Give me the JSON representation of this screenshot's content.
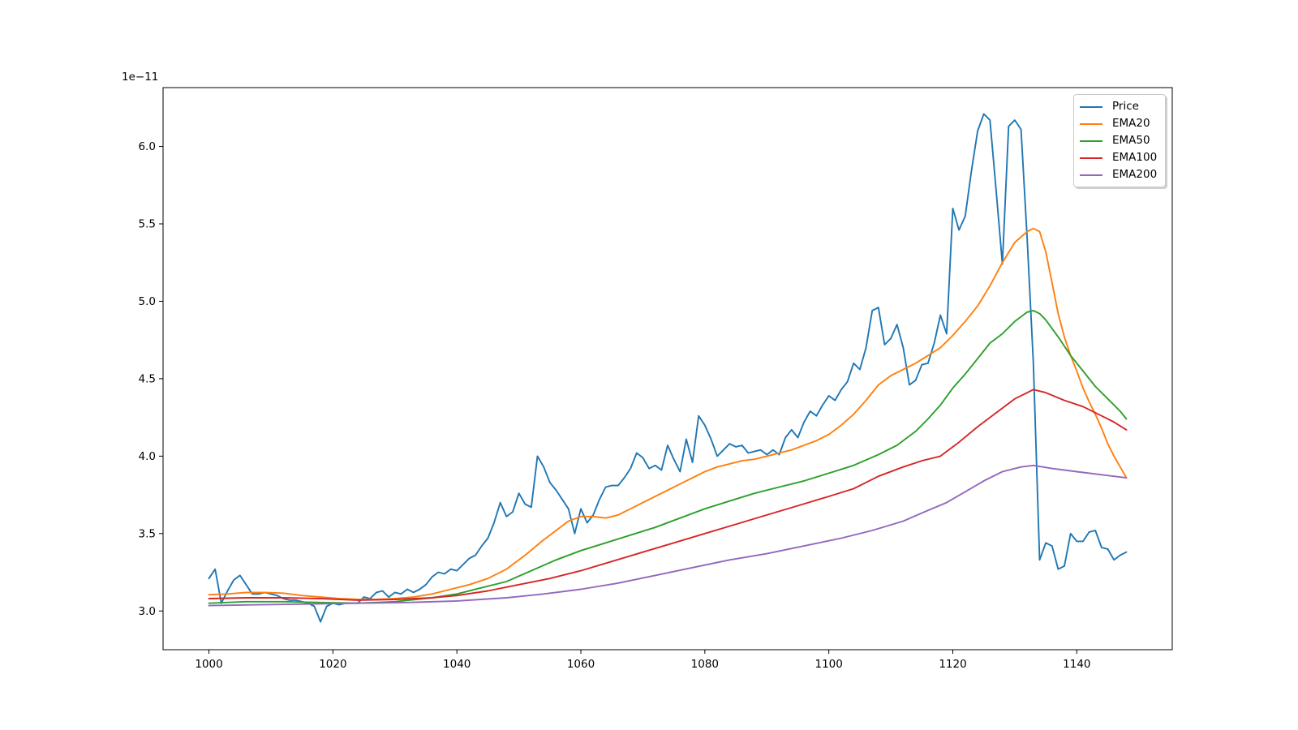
{
  "window": {
    "background": "#ffffff"
  },
  "chart_data": {
    "type": "line",
    "title": "",
    "xlabel": "",
    "ylabel": "",
    "offset_text": "1e−11",
    "xlim": [
      992.6,
      1155.4
    ],
    "ylim": [
      2.75,
      6.38
    ],
    "x_ticks": [
      1000,
      1020,
      1040,
      1060,
      1080,
      1100,
      1120,
      1140
    ],
    "y_ticks": [
      3.0,
      3.5,
      4.0,
      4.5,
      5.0,
      5.5,
      6.0
    ],
    "grid": false,
    "axis_color": "#000000",
    "legend": {
      "position": "upper-right",
      "entries": [
        {
          "label": "Price",
          "color": "#1f77b4"
        },
        {
          "label": "EMA20",
          "color": "#ff7f0e"
        },
        {
          "label": "EMA50",
          "color": "#2ca02c"
        },
        {
          "label": "EMA100",
          "color": "#d62728"
        },
        {
          "label": "EMA200",
          "color": "#9467bd"
        }
      ]
    },
    "series": [
      {
        "name": "Price",
        "color": "#1f77b4",
        "x_start": 1000,
        "x_step": 1,
        "values": [
          3.21,
          3.27,
          3.05,
          3.13,
          3.2,
          3.23,
          3.17,
          3.11,
          3.11,
          3.12,
          3.11,
          3.1,
          3.08,
          3.07,
          3.07,
          3.06,
          3.05,
          3.03,
          2.93,
          3.03,
          3.05,
          3.04,
          3.05,
          3.05,
          3.05,
          3.09,
          3.08,
          3.12,
          3.13,
          3.09,
          3.12,
          3.11,
          3.14,
          3.12,
          3.14,
          3.17,
          3.22,
          3.25,
          3.24,
          3.27,
          3.26,
          3.3,
          3.34,
          3.36,
          3.42,
          3.47,
          3.57,
          3.7,
          3.61,
          3.64,
          3.76,
          3.69,
          3.67,
          4.0,
          3.93,
          3.83,
          3.78,
          3.72,
          3.66,
          3.5,
          3.66,
          3.57,
          3.62,
          3.72,
          3.8,
          3.81,
          3.81,
          3.86,
          3.92,
          4.02,
          3.99,
          3.92,
          3.94,
          3.91,
          4.07,
          3.98,
          3.9,
          4.11,
          3.96,
          4.26,
          4.2,
          4.11,
          4.0,
          4.04,
          4.08,
          4.06,
          4.07,
          4.02,
          4.03,
          4.04,
          4.01,
          4.04,
          4.01,
          4.12,
          4.17,
          4.12,
          4.22,
          4.29,
          4.26,
          4.33,
          4.39,
          4.36,
          4.43,
          4.48,
          4.6,
          4.56,
          4.7,
          4.94,
          4.96,
          4.72,
          4.76,
          4.85,
          4.7,
          4.46,
          4.49,
          4.59,
          4.6,
          4.73,
          4.91,
          4.79,
          5.6,
          5.46,
          5.55,
          5.84,
          6.1,
          6.21,
          6.17,
          5.71,
          5.24,
          6.13,
          6.17,
          6.11,
          5.4,
          4.6,
          3.33,
          3.44,
          3.42,
          3.27,
          3.29,
          3.5,
          3.45,
          3.45,
          3.51,
          3.52,
          3.41,
          3.4,
          3.33,
          3.36,
          3.38
        ]
      },
      {
        "name": "EMA20",
        "color": "#ff7f0e",
        "points": [
          [
            1000,
            3.105
          ],
          [
            1003,
            3.11
          ],
          [
            1006,
            3.12
          ],
          [
            1009,
            3.12
          ],
          [
            1012,
            3.115
          ],
          [
            1015,
            3.1
          ],
          [
            1018,
            3.09
          ],
          [
            1021,
            3.08
          ],
          [
            1024,
            3.075
          ],
          [
            1027,
            3.075
          ],
          [
            1030,
            3.08
          ],
          [
            1033,
            3.09
          ],
          [
            1036,
            3.11
          ],
          [
            1039,
            3.14
          ],
          [
            1042,
            3.17
          ],
          [
            1045,
            3.21
          ],
          [
            1048,
            3.27
          ],
          [
            1051,
            3.36
          ],
          [
            1054,
            3.46
          ],
          [
            1056,
            3.52
          ],
          [
            1058,
            3.58
          ],
          [
            1060,
            3.61
          ],
          [
            1062,
            3.61
          ],
          [
            1064,
            3.6
          ],
          [
            1066,
            3.62
          ],
          [
            1068,
            3.66
          ],
          [
            1070,
            3.7
          ],
          [
            1072,
            3.74
          ],
          [
            1074,
            3.78
          ],
          [
            1076,
            3.82
          ],
          [
            1078,
            3.86
          ],
          [
            1080,
            3.9
          ],
          [
            1082,
            3.93
          ],
          [
            1084,
            3.95
          ],
          [
            1086,
            3.97
          ],
          [
            1088,
            3.98
          ],
          [
            1090,
            4.0
          ],
          [
            1092,
            4.02
          ],
          [
            1094,
            4.04
          ],
          [
            1096,
            4.07
          ],
          [
            1098,
            4.1
          ],
          [
            1100,
            4.14
          ],
          [
            1102,
            4.2
          ],
          [
            1104,
            4.27
          ],
          [
            1106,
            4.36
          ],
          [
            1108,
            4.46
          ],
          [
            1110,
            4.52
          ],
          [
            1112,
            4.56
          ],
          [
            1114,
            4.6
          ],
          [
            1116,
            4.65
          ],
          [
            1118,
            4.7
          ],
          [
            1120,
            4.78
          ],
          [
            1122,
            4.87
          ],
          [
            1124,
            4.97
          ],
          [
            1126,
            5.1
          ],
          [
            1128,
            5.25
          ],
          [
            1130,
            5.38
          ],
          [
            1132,
            5.45
          ],
          [
            1133,
            5.47
          ],
          [
            1134,
            5.45
          ],
          [
            1135,
            5.32
          ],
          [
            1136,
            5.12
          ],
          [
            1137,
            4.92
          ],
          [
            1138,
            4.77
          ],
          [
            1139,
            4.65
          ],
          [
            1140,
            4.55
          ],
          [
            1141,
            4.44
          ],
          [
            1142,
            4.35
          ],
          [
            1143,
            4.27
          ],
          [
            1144,
            4.18
          ],
          [
            1145,
            4.08
          ],
          [
            1146,
            4.0
          ],
          [
            1147,
            3.93
          ],
          [
            1148,
            3.86
          ]
        ]
      },
      {
        "name": "EMA50",
        "color": "#2ca02c",
        "points": [
          [
            1000,
            3.05
          ],
          [
            1006,
            3.06
          ],
          [
            1012,
            3.06
          ],
          [
            1018,
            3.055
          ],
          [
            1024,
            3.05
          ],
          [
            1030,
            3.06
          ],
          [
            1036,
            3.085
          ],
          [
            1040,
            3.11
          ],
          [
            1044,
            3.15
          ],
          [
            1048,
            3.19
          ],
          [
            1052,
            3.26
          ],
          [
            1056,
            3.33
          ],
          [
            1060,
            3.39
          ],
          [
            1064,
            3.44
          ],
          [
            1068,
            3.49
          ],
          [
            1072,
            3.54
          ],
          [
            1076,
            3.6
          ],
          [
            1080,
            3.66
          ],
          [
            1084,
            3.71
          ],
          [
            1088,
            3.76
          ],
          [
            1092,
            3.8
          ],
          [
            1096,
            3.84
          ],
          [
            1100,
            3.89
          ],
          [
            1104,
            3.94
          ],
          [
            1108,
            4.01
          ],
          [
            1111,
            4.07
          ],
          [
            1114,
            4.16
          ],
          [
            1116,
            4.24
          ],
          [
            1118,
            4.33
          ],
          [
            1120,
            4.44
          ],
          [
            1122,
            4.53
          ],
          [
            1124,
            4.63
          ],
          [
            1126,
            4.73
          ],
          [
            1128,
            4.79
          ],
          [
            1130,
            4.87
          ],
          [
            1132,
            4.93
          ],
          [
            1133,
            4.94
          ],
          [
            1134,
            4.92
          ],
          [
            1135,
            4.88
          ],
          [
            1137,
            4.77
          ],
          [
            1139,
            4.65
          ],
          [
            1141,
            4.55
          ],
          [
            1143,
            4.45
          ],
          [
            1145,
            4.37
          ],
          [
            1147,
            4.29
          ],
          [
            1148,
            4.24
          ]
        ]
      },
      {
        "name": "EMA100",
        "color": "#d62728",
        "points": [
          [
            1000,
            3.08
          ],
          [
            1006,
            3.085
          ],
          [
            1012,
            3.085
          ],
          [
            1018,
            3.08
          ],
          [
            1024,
            3.07
          ],
          [
            1030,
            3.075
          ],
          [
            1036,
            3.085
          ],
          [
            1040,
            3.1
          ],
          [
            1045,
            3.13
          ],
          [
            1050,
            3.17
          ],
          [
            1055,
            3.21
          ],
          [
            1060,
            3.26
          ],
          [
            1065,
            3.32
          ],
          [
            1070,
            3.38
          ],
          [
            1075,
            3.44
          ],
          [
            1080,
            3.5
          ],
          [
            1085,
            3.56
          ],
          [
            1090,
            3.62
          ],
          [
            1095,
            3.68
          ],
          [
            1100,
            3.74
          ],
          [
            1104,
            3.79
          ],
          [
            1108,
            3.87
          ],
          [
            1112,
            3.93
          ],
          [
            1115,
            3.97
          ],
          [
            1118,
            4.0
          ],
          [
            1121,
            4.09
          ],
          [
            1124,
            4.19
          ],
          [
            1127,
            4.28
          ],
          [
            1130,
            4.37
          ],
          [
            1132,
            4.41
          ],
          [
            1133,
            4.43
          ],
          [
            1135,
            4.41
          ],
          [
            1138,
            4.36
          ],
          [
            1141,
            4.32
          ],
          [
            1144,
            4.26
          ],
          [
            1146,
            4.22
          ],
          [
            1148,
            4.17
          ]
        ]
      },
      {
        "name": "EMA200",
        "color": "#9467bd",
        "points": [
          [
            1000,
            3.035
          ],
          [
            1008,
            3.04
          ],
          [
            1016,
            3.045
          ],
          [
            1024,
            3.05
          ],
          [
            1032,
            3.055
          ],
          [
            1040,
            3.065
          ],
          [
            1048,
            3.085
          ],
          [
            1054,
            3.11
          ],
          [
            1060,
            3.14
          ],
          [
            1066,
            3.18
          ],
          [
            1072,
            3.23
          ],
          [
            1078,
            3.28
          ],
          [
            1084,
            3.33
          ],
          [
            1090,
            3.37
          ],
          [
            1096,
            3.42
          ],
          [
            1102,
            3.47
          ],
          [
            1107,
            3.52
          ],
          [
            1112,
            3.58
          ],
          [
            1116,
            3.65
          ],
          [
            1119,
            3.7
          ],
          [
            1122,
            3.77
          ],
          [
            1125,
            3.84
          ],
          [
            1128,
            3.9
          ],
          [
            1131,
            3.93
          ],
          [
            1133,
            3.94
          ],
          [
            1136,
            3.92
          ],
          [
            1140,
            3.9
          ],
          [
            1144,
            3.88
          ],
          [
            1148,
            3.86
          ]
        ]
      }
    ]
  }
}
